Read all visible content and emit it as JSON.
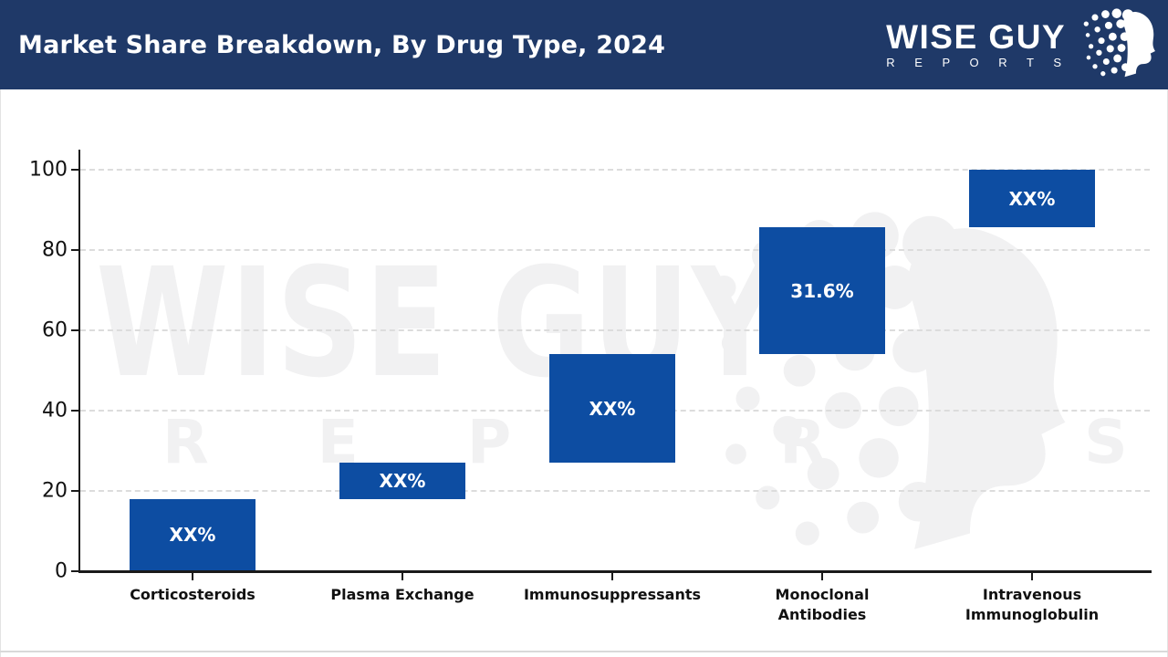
{
  "header": {
    "title": "Market Share Breakdown, By Drug Type, 2024",
    "logo": {
      "wordmark": "WISE GUY",
      "subtext": "R E P O R T S"
    },
    "colors": {
      "background": "#1F3968",
      "text": "#FFFFFF"
    }
  },
  "watermark": {
    "line1": "WISE GUY",
    "line2": "R E P O R T S"
  },
  "chart_data": {
    "type": "bar",
    "subtype": "waterfall",
    "title": "Market Share Breakdown, By Drug Type, 2024",
    "xlabel": "",
    "ylabel": "",
    "ylim": [
      0,
      105
    ],
    "yticks": [
      0,
      20,
      40,
      60,
      80,
      100
    ],
    "grid": "horizontal-dashed",
    "legend": "none",
    "bar_color": "#0D4DA2",
    "bar_label_color": "#FFFFFF",
    "categories": [
      "Corticosteroids",
      "Plasma Exchange",
      "Immunosuppressants",
      "Monoclonal Antibodies",
      "Intravenous Immunoglobulin"
    ],
    "xtick_display": [
      "Corticosteroids",
      "Plasma Exchange",
      "Immunosuppressants",
      "Monoclonal\nAntibodies",
      "Intravenous\nImmunoglobulin"
    ],
    "segments": [
      {
        "category": "Corticosteroids",
        "label": "XX%",
        "start": 0,
        "end": 18
      },
      {
        "category": "Plasma Exchange",
        "label": "XX%",
        "start": 18,
        "end": 27
      },
      {
        "category": "Immunosuppressants",
        "label": "XX%",
        "start": 27,
        "end": 54
      },
      {
        "category": "Monoclonal Antibodies",
        "label": "31.6%",
        "start": 54,
        "end": 85.6
      },
      {
        "category": "Intravenous Immunoglobulin",
        "label": "XX%",
        "start": 85.6,
        "end": 100
      }
    ],
    "bar_labels": [
      "XX%",
      "XX%",
      "XX%",
      "31.6%",
      "XX%"
    ]
  }
}
